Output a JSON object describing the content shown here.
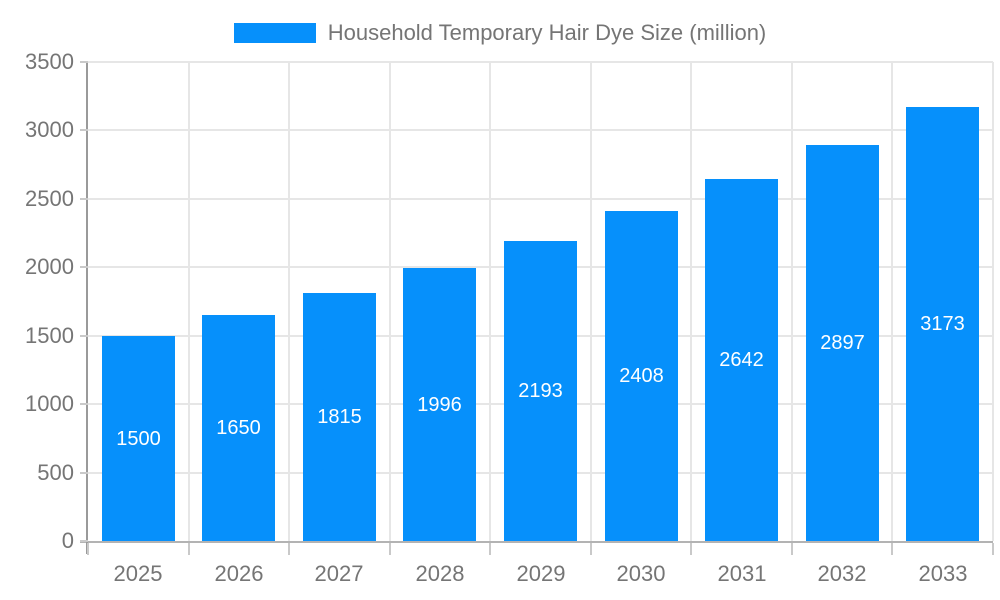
{
  "chart_data": {
    "type": "bar",
    "title": "Household Temporary Hair Dye Size (million)",
    "series": [
      {
        "name": "Household Temporary Hair Dye Size (million)",
        "values": [
          1500,
          1650,
          1815,
          1996,
          2193,
          2408,
          2642,
          2897,
          3173
        ]
      }
    ],
    "categories": [
      "2025",
      "2026",
      "2027",
      "2028",
      "2029",
      "2030",
      "2031",
      "2032",
      "2033"
    ],
    "xlabel": "",
    "ylabel": "",
    "ylim": [
      0,
      3500
    ],
    "yticks": [
      0,
      500,
      1000,
      1500,
      2000,
      2500,
      3000,
      3500
    ],
    "grid": "both",
    "legend_position": "top-center",
    "bar_labels_inside": true,
    "colors": {
      "bar": "#0690FB",
      "bar_label_text": "#ffffff",
      "axis_text": "#757575",
      "legend_text": "#757575",
      "gridline": "#e6e6e6",
      "x_axis_line": "#b3b3b3",
      "y_axis_line": "#9a9a9a",
      "tick_mark": "#c9c9c9",
      "background": "#ffffff"
    }
  }
}
